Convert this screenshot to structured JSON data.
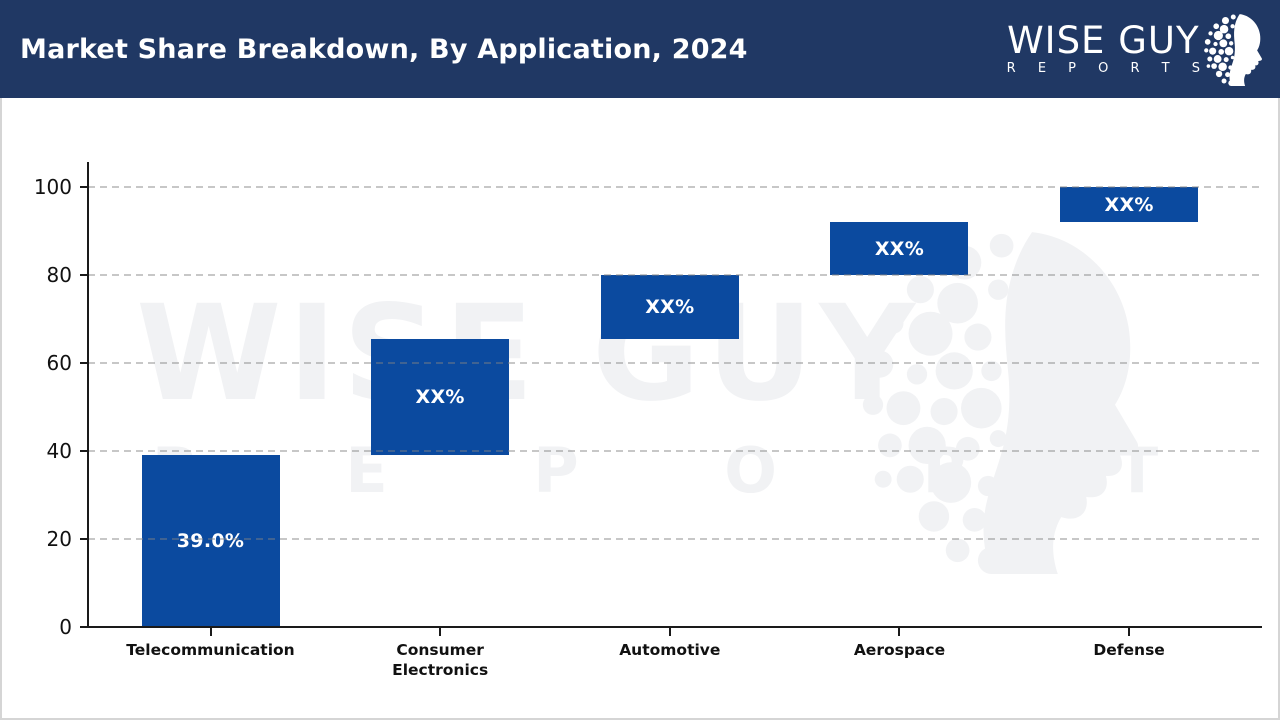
{
  "header": {
    "title": "Market Share Breakdown, By Application, 2024",
    "logo": {
      "line1": "WISE GUY",
      "line2": "R E P O R T S"
    }
  },
  "watermark": {
    "line1": "WISE GUY",
    "line2": "R E P O R T S"
  },
  "colors": {
    "header_bg": "#203864",
    "bar": "#0b4a9f",
    "axis": "#1a1a1a",
    "grid": "#828282",
    "watermark": "#f1f2f4",
    "title_text": "#ffffff",
    "bar_label_text": "#ffffff"
  },
  "chart_data": {
    "type": "bar",
    "subtype": "waterfall",
    "title": "Market Share Breakdown, By Application, 2024",
    "categories": [
      "Telecommunication",
      "Consumer\nElectronics",
      "Automotive",
      "Aerospace",
      "Defense"
    ],
    "segments": [
      {
        "category": "Telecommunication",
        "start": 0,
        "end": 39,
        "label": "39.0%"
      },
      {
        "category": "Consumer Electronics",
        "start": 39,
        "end": 65.5,
        "label": "XX%"
      },
      {
        "category": "Automotive",
        "start": 65.5,
        "end": 80,
        "label": "XX%"
      },
      {
        "category": "Aerospace",
        "start": 80,
        "end": 92,
        "label": "XX%"
      },
      {
        "category": "Defense",
        "start": 92,
        "end": 100,
        "label": "XX%"
      }
    ],
    "yticks": [
      0,
      20,
      40,
      60,
      80,
      100
    ],
    "ylim": [
      0,
      105.7
    ],
    "xlabel": "",
    "ylabel": "",
    "grid": "horizontal-dashed",
    "legend": "none"
  }
}
